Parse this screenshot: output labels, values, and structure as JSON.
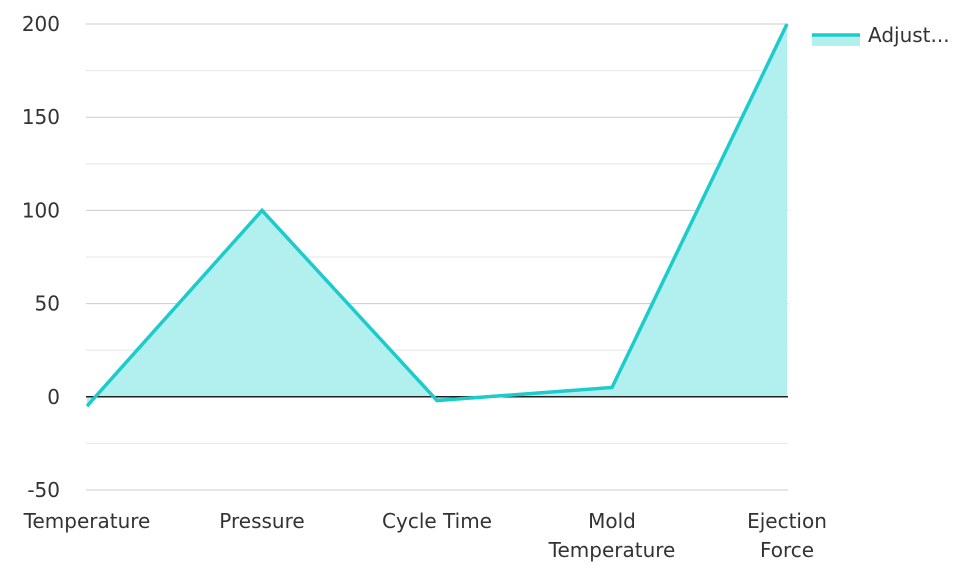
{
  "chart_data": {
    "type": "area",
    "categories": [
      [
        "Temperature"
      ],
      [
        "Pressure"
      ],
      [
        "Cycle Time"
      ],
      [
        "Mold",
        "Temperature"
      ],
      [
        "Ejection",
        "Force"
      ]
    ],
    "series": [
      {
        "name": "Adjust...",
        "values": [
          -5,
          100,
          -2,
          5,
          200
        ],
        "stroke_color": "#1ecbcb",
        "fill_color": "#b2efef"
      }
    ],
    "ylim": [
      -50,
      200
    ],
    "yticks": [
      -50,
      0,
      50,
      100,
      150,
      200
    ],
    "grid": true,
    "zero_line": true,
    "legend": "top-right"
  }
}
